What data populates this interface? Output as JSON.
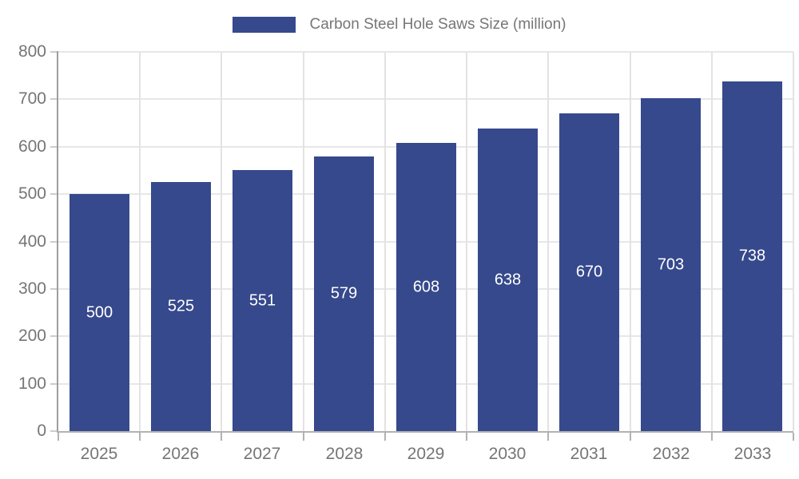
{
  "legend": {
    "label": "Carbon Steel Hole Saws Size (million)",
    "swatch_color": "#36498c"
  },
  "chart_data": {
    "type": "bar",
    "title": "Carbon Steel Hole Saws Size (million)",
    "categories": [
      "2025",
      "2026",
      "2027",
      "2028",
      "2029",
      "2030",
      "2031",
      "2032",
      "2033"
    ],
    "values": [
      500,
      525,
      551,
      579,
      608,
      638,
      670,
      703,
      738
    ],
    "xlabel": "",
    "ylabel": "",
    "ylim": [
      0,
      800
    ],
    "yticks": [
      0,
      100,
      200,
      300,
      400,
      500,
      600,
      700,
      800
    ],
    "grid": true,
    "legend_position": "top-center",
    "bar_color": "#36498c",
    "value_label_color": "#ffffff",
    "axis_text_color": "#757575"
  }
}
